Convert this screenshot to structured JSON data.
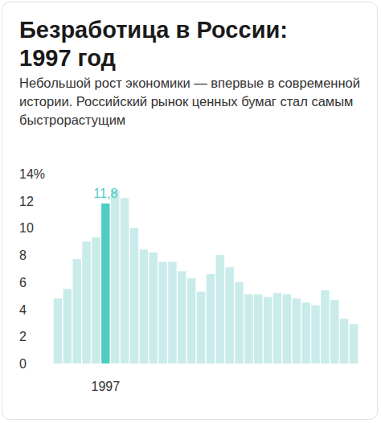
{
  "chart_data": {
    "type": "bar",
    "title": "Безработица в России: 1997 год",
    "subtitle": "Небольшой рост экономики — впервые в современной истории. Российский рынок ценных бумаг стал самым быстрорастущим",
    "categories": [
      null,
      null,
      null,
      null,
      null,
      "1997",
      null,
      null,
      null,
      null,
      null,
      null,
      null,
      null,
      null,
      null,
      null,
      null,
      null,
      null,
      null,
      null,
      null,
      null,
      null,
      null,
      null,
      null,
      null,
      null,
      null,
      null
    ],
    "values": [
      4.8,
      5.5,
      7.7,
      9.0,
      9.3,
      11.8,
      12.8,
      12.2,
      10.0,
      8.4,
      8.2,
      7.5,
      7.5,
      6.8,
      6.3,
      5.3,
      6.6,
      8.0,
      7.1,
      6.0,
      5.1,
      5.1,
      4.9,
      5.2,
      5.1,
      4.8,
      4.5,
      4.3,
      5.4,
      4.7,
      3.3,
      2.9
    ],
    "value_labels": [
      null,
      null,
      null,
      null,
      null,
      "11,8",
      null,
      null,
      null,
      null,
      null,
      null,
      null,
      null,
      null,
      null,
      null,
      null,
      null,
      null,
      null,
      null,
      null,
      null,
      null,
      null,
      null,
      null,
      null,
      null,
      null,
      null
    ],
    "colors": [
      "#c9ecea",
      "#c9ecea",
      "#c9ecea",
      "#c9ecea",
      "#c9ecea",
      "#4fcdc2",
      "#c9ecea",
      "#c9ecea",
      "#c9ecea",
      "#c9ecea",
      "#c9ecea",
      "#c9ecea",
      "#c9ecea",
      "#c9ecea",
      "#c9ecea",
      "#c9ecea",
      "#c9ecea",
      "#c9ecea",
      "#c9ecea",
      "#c9ecea",
      "#c9ecea",
      "#c9ecea",
      "#c9ecea",
      "#c9ecea",
      "#c9ecea",
      "#c9ecea",
      "#c9ecea",
      "#c9ecea",
      "#c9ecea",
      "#c9ecea",
      "#c9ecea",
      "#c9ecea"
    ],
    "ylim": [
      0,
      14
    ],
    "yticks": [
      0,
      2,
      4,
      6,
      8,
      10,
      12,
      {
        "value": 14,
        "label": "14%"
      }
    ],
    "grid": false
  }
}
